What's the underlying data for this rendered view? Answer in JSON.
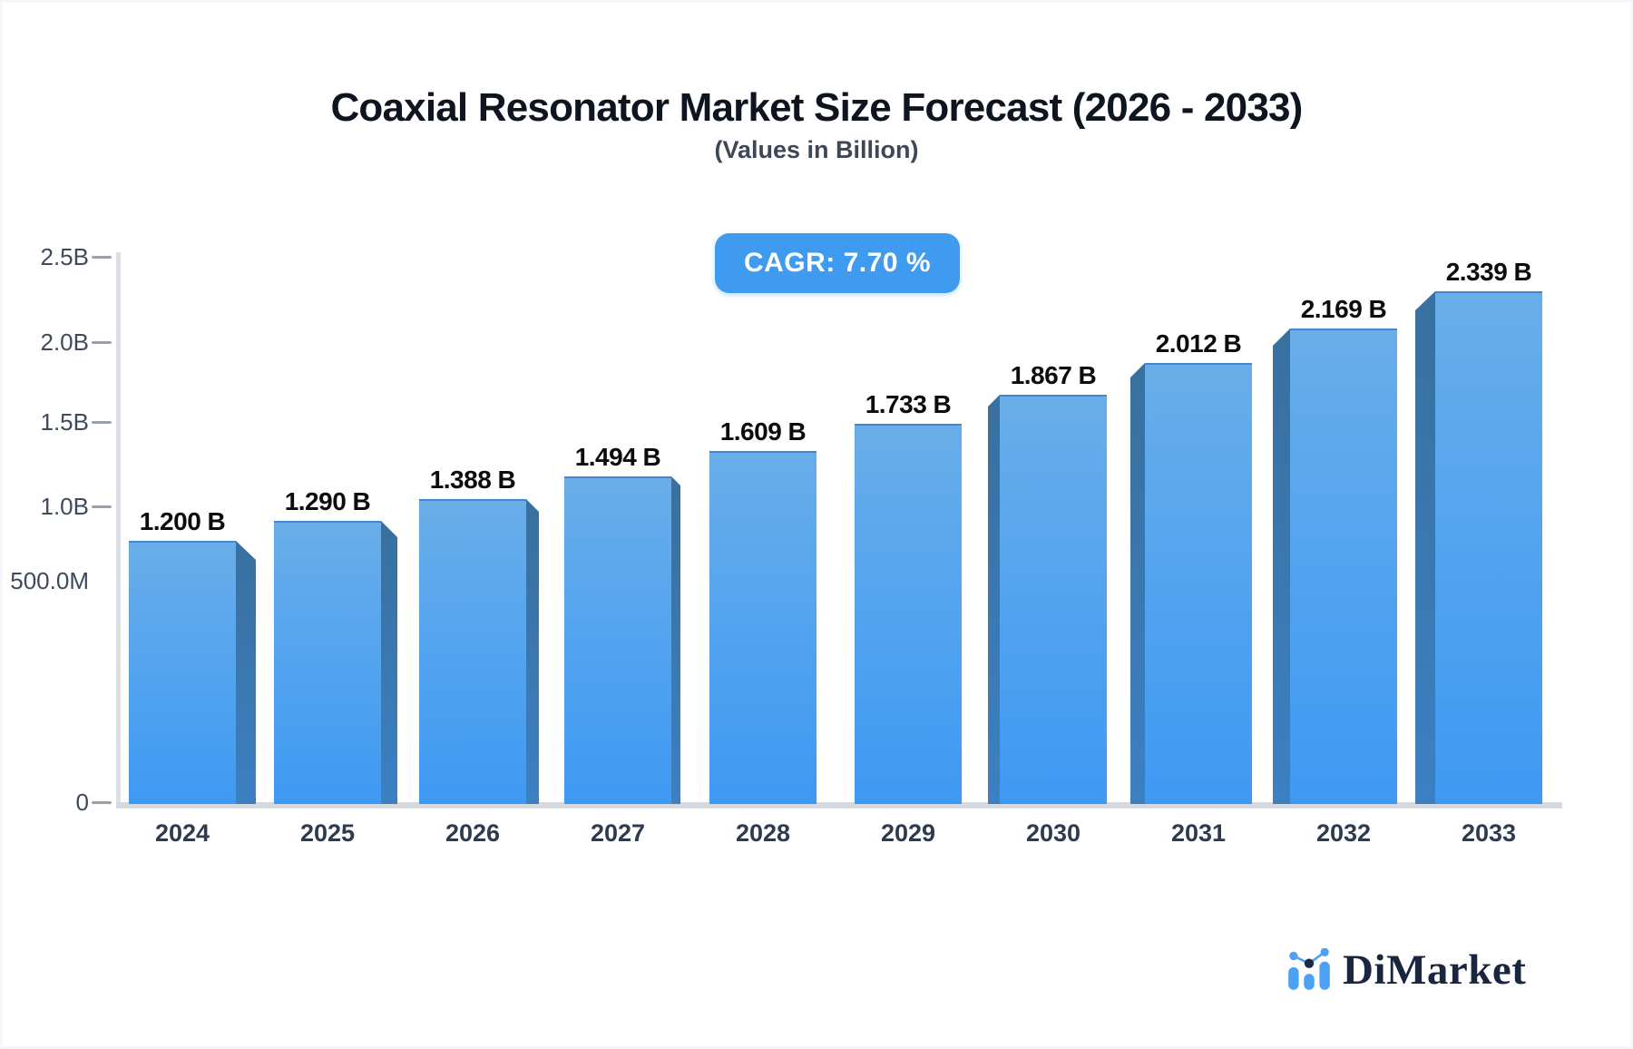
{
  "chart_data": {
    "type": "bar",
    "title": "Coaxial Resonator Market Size Forecast (2026 - 2033)",
    "subtitle": "(Values in Billion)",
    "cagr_label": "CAGR: 7.70 %",
    "xlabel": "",
    "ylabel": "",
    "ylim": [
      0,
      2.5
    ],
    "grid": "off",
    "legend": "none",
    "categories": [
      "2024",
      "2025",
      "2026",
      "2027",
      "2028",
      "2029",
      "2030",
      "2031",
      "2032",
      "2033"
    ],
    "values": [
      1.2,
      1.29,
      1.388,
      1.494,
      1.609,
      1.733,
      1.867,
      2.012,
      2.169,
      2.339
    ],
    "bar_labels": [
      "1.200 B",
      "1.290 B",
      "1.388 B",
      "1.494 B",
      "1.609 B",
      "1.733 B",
      "1.867 B",
      "2.012 B",
      "2.169 B",
      "2.339 B"
    ],
    "y_tick_labels": [
      "2.5B",
      "2.0B",
      "1.5B",
      "1.0B",
      "500.0M",
      "0"
    ],
    "colors": {
      "bar_face_top": "#68aee9",
      "bar_face_bottom": "#3f99f3",
      "bar_side_3d": "#3a78b2",
      "badge_bg": "#3f9bef",
      "badge_text": "#ffffff",
      "axis_line": "#dcdfe4",
      "tick_text": "#3e4a5b",
      "value_label_text": "#0b0c0e",
      "title_text": "#0e1420"
    }
  },
  "branding": {
    "logo_text": "DiMarket",
    "logo_icon": "bar-line-chart-icon"
  }
}
